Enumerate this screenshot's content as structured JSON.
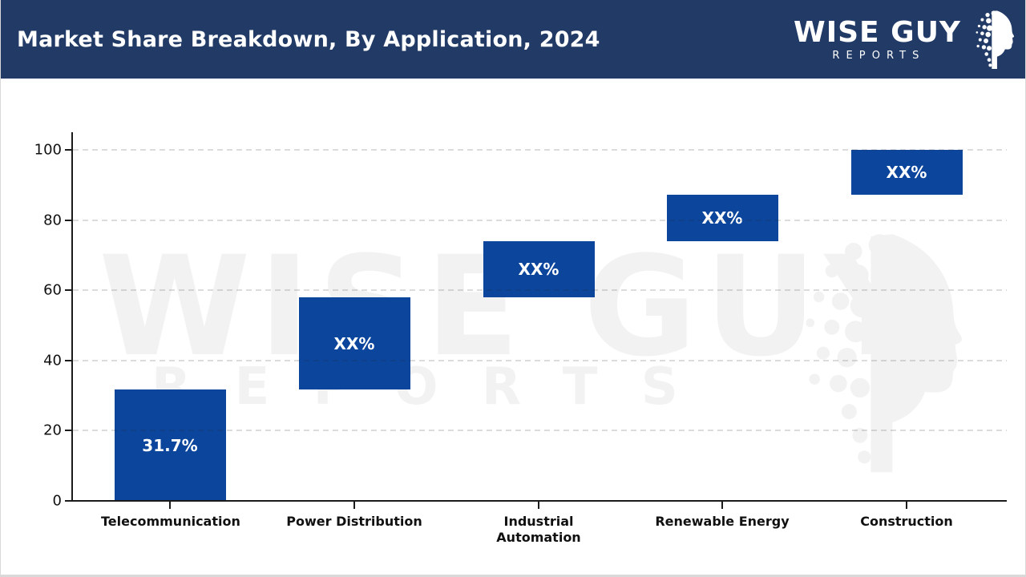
{
  "header": {
    "title": "Market Share Breakdown, By Application, 2024",
    "logo": {
      "line1": "WISE GUY",
      "line2": "REPORTS"
    }
  },
  "watermark": {
    "line1": "WISE GUY",
    "line2": "REPORTS"
  },
  "colors": {
    "header_bg": "#213a66",
    "bar": "#0b459c",
    "bar_label": "#ffffff",
    "axis": "#1a1a1a",
    "grid": "rgba(40,40,40,0.16)",
    "watermark": "#f2f2f3"
  },
  "chart_data": {
    "type": "bar",
    "subtype": "waterfall",
    "title": "Market Share Breakdown, By Application, 2024",
    "categories": [
      "Telecommunication",
      "Power Distribution",
      "Industrial Automation",
      "Renewable Energy",
      "Construction"
    ],
    "segments": [
      {
        "category": "Telecommunication",
        "start": 0,
        "end": 31.7,
        "label": "31.7%"
      },
      {
        "category": "Power Distribution",
        "start": 31.7,
        "end": 58.0,
        "label": "XX%"
      },
      {
        "category": "Industrial Automation",
        "start": 58.0,
        "end": 74.0,
        "label": "XX%"
      },
      {
        "category": "Renewable Energy",
        "start": 74.0,
        "end": 87.2,
        "label": "XX%"
      },
      {
        "category": "Construction",
        "start": 87.2,
        "end": 100,
        "label": "XX%"
      }
    ],
    "xlabel": "",
    "ylabel": "",
    "ylim": [
      0,
      100
    ],
    "yticks": [
      0,
      20,
      40,
      60,
      80,
      100
    ],
    "grid": "horizontal-dashed",
    "legend": "none"
  }
}
